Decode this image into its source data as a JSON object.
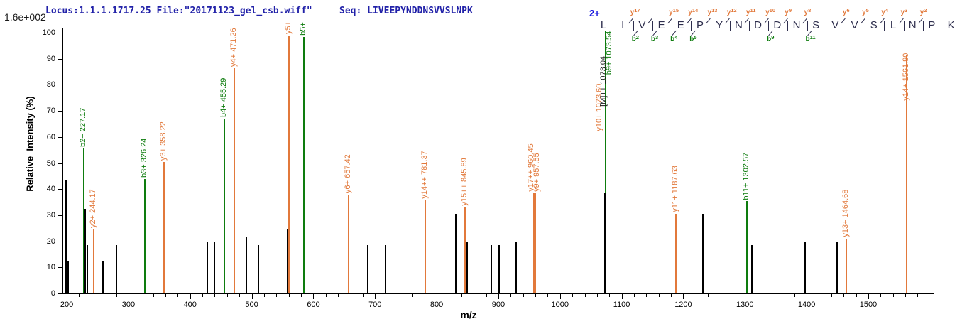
{
  "header": {
    "locus_file": "Locus:1.1.1.1717.25 File:\"20171123_gel_csb.wiff\"",
    "seq": "Seq: LIVEEPYNDDNSVVSLNPK",
    "scale_label": "1.6e+002"
  },
  "colors": {
    "y_ion": "#e2793b",
    "b_ion": "#0e7c0e",
    "unassigned_peak": "#000000",
    "header_text": "#2121a8",
    "charge_text": "#1414dd"
  },
  "sequence_panel": {
    "charge": "2+",
    "residues": [
      "L",
      "I",
      "V",
      "E",
      "E",
      "P",
      "Y",
      "N",
      "D",
      "D",
      "N",
      "S",
      "V",
      "V",
      "S",
      "L",
      "N",
      "P",
      "K"
    ],
    "cleavages": [
      {
        "after": 2,
        "y": "y17",
        "b": "b2"
      },
      {
        "after": 3,
        "y": "",
        "b": "b3"
      },
      {
        "after": 4,
        "y": "y15",
        "b": "b4"
      },
      {
        "after": 5,
        "y": "y14",
        "b": "b5"
      },
      {
        "after": 6,
        "y": "y13",
        "b": ""
      },
      {
        "after": 7,
        "y": "y12",
        "b": ""
      },
      {
        "after": 8,
        "y": "y11",
        "b": ""
      },
      {
        "after": 9,
        "y": "y10",
        "b": "b9"
      },
      {
        "after": 10,
        "y": "y9",
        "b": ""
      },
      {
        "after": 11,
        "y": "y8",
        "b": "b11"
      },
      {
        "after": 13,
        "y": "y6",
        "b": ""
      },
      {
        "after": 14,
        "y": "y5",
        "b": ""
      },
      {
        "after": 15,
        "y": "y4",
        "b": ""
      },
      {
        "after": 16,
        "y": "y3",
        "b": ""
      },
      {
        "after": 17,
        "y": "y2",
        "b": ""
      }
    ]
  },
  "chart_data": {
    "type": "bar",
    "subtype": "mass-spectrum-stick-plot",
    "xlabel": "m/z",
    "ylabel": "Relative  Intensity (%)",
    "xlim": [
      193,
      1606
    ],
    "ylim": [
      0,
      100
    ],
    "x_major_ticks": [
      200,
      300,
      400,
      500,
      600,
      700,
      800,
      900,
      1000,
      1100,
      1200,
      1300,
      1400,
      1500
    ],
    "x_minor_tick_step": 20,
    "y_major_ticks": [
      0,
      10,
      20,
      30,
      40,
      50,
      60,
      70,
      80,
      90,
      100
    ],
    "grid": false,
    "peaks": [
      {
        "mz": 199,
        "intensity": 43.5,
        "type": "unassigned",
        "label": ""
      },
      {
        "mz": 202,
        "intensity": 12.5,
        "type": "unassigned",
        "label": "",
        "wide": true
      },
      {
        "mz": 227.17,
        "intensity": 55.5,
        "type": "b",
        "label": "b2+ 227.17"
      },
      {
        "mz": 230,
        "intensity": 32.5,
        "type": "unassigned",
        "label": ""
      },
      {
        "mz": 233,
        "intensity": 18.5,
        "type": "unassigned",
        "label": ""
      },
      {
        "mz": 244.17,
        "intensity": 24.5,
        "type": "y",
        "label": "y2+ 244.17"
      },
      {
        "mz": 259,
        "intensity": 12.5,
        "type": "unassigned",
        "label": ""
      },
      {
        "mz": 281,
        "intensity": 18.5,
        "type": "unassigned",
        "label": ""
      },
      {
        "mz": 326.24,
        "intensity": 44,
        "type": "b",
        "label": "b3+ 326.24"
      },
      {
        "mz": 358.22,
        "intensity": 50.5,
        "type": "y",
        "label": "y3+ 358.22"
      },
      {
        "mz": 428,
        "intensity": 20,
        "type": "unassigned",
        "label": ""
      },
      {
        "mz": 440,
        "intensity": 20,
        "type": "unassigned",
        "label": ""
      },
      {
        "mz": 455.29,
        "intensity": 67,
        "type": "b",
        "label": "b4+ 455.29"
      },
      {
        "mz": 471.26,
        "intensity": 86.5,
        "type": "y",
        "label": "y4+ 471.26"
      },
      {
        "mz": 491,
        "intensity": 21.5,
        "type": "unassigned",
        "label": ""
      },
      {
        "mz": 511,
        "intensity": 18.5,
        "type": "unassigned",
        "label": ""
      },
      {
        "mz": 558,
        "intensity": 24.5,
        "type": "unassigned",
        "label": ""
      },
      {
        "mz": 560,
        "intensity": 99,
        "type": "y",
        "label": "y5+"
      },
      {
        "mz": 584,
        "intensity": 98.5,
        "type": "b",
        "label": "b5+"
      },
      {
        "mz": 657.42,
        "intensity": 38,
        "type": "y",
        "label": "y6+ 657.42"
      },
      {
        "mz": 688,
        "intensity": 18.5,
        "type": "unassigned",
        "label": ""
      },
      {
        "mz": 717,
        "intensity": 18.5,
        "type": "unassigned",
        "label": ""
      },
      {
        "mz": 781.37,
        "intensity": 35.8,
        "type": "y",
        "label": "y14++ 781.37"
      },
      {
        "mz": 831,
        "intensity": 30.5,
        "type": "unassigned",
        "label": ""
      },
      {
        "mz": 845.89,
        "intensity": 33,
        "type": "y",
        "label": "y15++ 845.89"
      },
      {
        "mz": 849,
        "intensity": 20,
        "type": "unassigned",
        "label": ""
      },
      {
        "mz": 889,
        "intensity": 18.5,
        "type": "unassigned",
        "label": ""
      },
      {
        "mz": 901,
        "intensity": 18.5,
        "type": "unassigned",
        "label": ""
      },
      {
        "mz": 929,
        "intensity": 20,
        "type": "unassigned",
        "label": ""
      },
      {
        "mz": 957.55,
        "intensity": 38.5,
        "type": "y",
        "label": "y9+ 957.55"
      },
      {
        "mz": 960.45,
        "intensity": 38.5,
        "type": "y",
        "label": "y17++ 960.45"
      },
      {
        "mz": 1073.6,
        "intensity": 38.5,
        "type": "y",
        "label": "y10+ 1073.60"
      },
      {
        "mz": 1073.54,
        "intensity": 100.5,
        "type": "b",
        "label": "b9+ 1073.54"
      },
      {
        "mz": 1073.04,
        "intensity": 38.8,
        "type": "unassigned",
        "label": "[M]++ 1073.04",
        "wide": true
      },
      {
        "mz": 1187.63,
        "intensity": 30.5,
        "type": "y",
        "label": "y11+ 1187.63"
      },
      {
        "mz": 1232,
        "intensity": 30.5,
        "type": "unassigned",
        "label": ""
      },
      {
        "mz": 1302.57,
        "intensity": 35.3,
        "type": "b",
        "label": "b11+ 1302.57"
      },
      {
        "mz": 1311,
        "intensity": 18.5,
        "type": "unassigned",
        "label": ""
      },
      {
        "mz": 1397,
        "intensity": 20,
        "type": "unassigned",
        "label": ""
      },
      {
        "mz": 1449,
        "intensity": 20,
        "type": "unassigned",
        "label": ""
      },
      {
        "mz": 1464.68,
        "intensity": 21,
        "type": "y",
        "label": "y13+ 1464.68"
      },
      {
        "mz": 1561.8,
        "intensity": 91.5,
        "type": "y",
        "label": "y14+ 1561.80"
      }
    ]
  }
}
